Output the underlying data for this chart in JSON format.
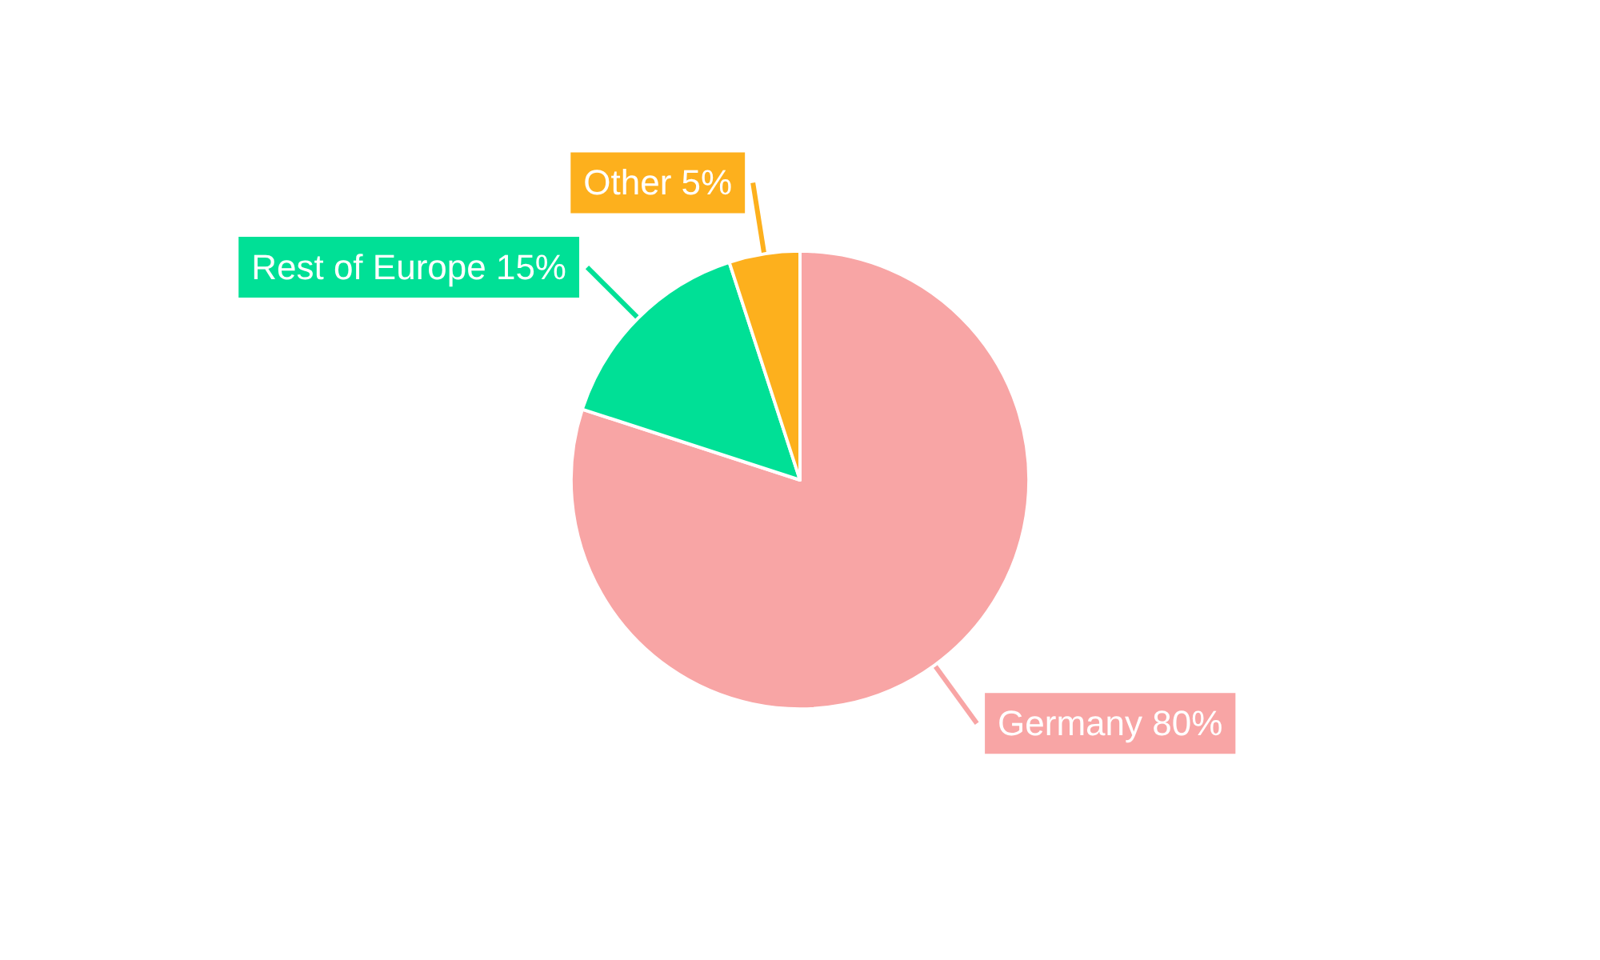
{
  "chart_data": {
    "type": "pie",
    "categories": [
      "Germany",
      "Rest of Europe",
      "Other"
    ],
    "values": [
      80,
      15,
      5
    ],
    "value_labels": [
      "80%",
      "15%",
      "5%"
    ],
    "colors": [
      "#f8a5a5",
      "#00e096",
      "#fdb01d"
    ]
  }
}
